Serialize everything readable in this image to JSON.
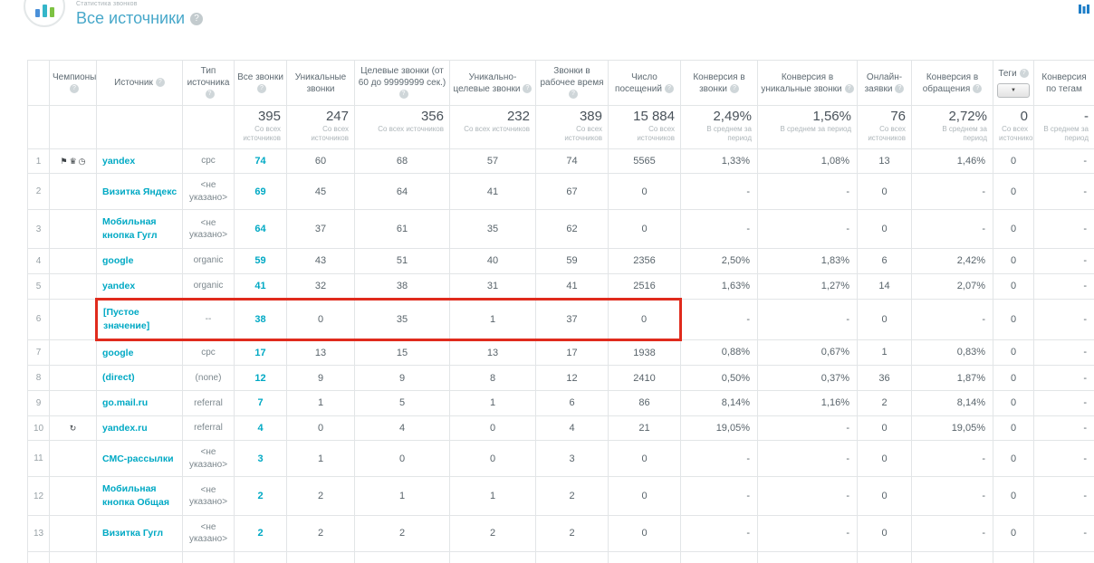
{
  "page": {
    "breadcrumb": "Статистика звонков",
    "title": "Все источники"
  },
  "table": {
    "help_glyph": "?",
    "dropdown_glyph": "▼",
    "columns": [
      {
        "id": "num",
        "label": ""
      },
      {
        "id": "champions",
        "label": "Чемпионы",
        "help": true
      },
      {
        "id": "source",
        "label": "Источник",
        "help": true
      },
      {
        "id": "type",
        "label": "Тип источника",
        "help": true
      },
      {
        "id": "calls",
        "label": "Все звонки",
        "help": true
      },
      {
        "id": "unique",
        "label": "Уникальные звонки"
      },
      {
        "id": "target",
        "label": "Целевые звонки (от 60 до 99999999 сек.)",
        "help": true
      },
      {
        "id": "unique_target",
        "label": "Уникально-целевые звонки",
        "help": true
      },
      {
        "id": "work_time",
        "label": "Звонки в рабочее время",
        "help": true
      },
      {
        "id": "visits",
        "label": "Число посещений",
        "help": true
      },
      {
        "id": "conv_calls",
        "label": "Конверсия в звонки",
        "help": true,
        "align": "right"
      },
      {
        "id": "conv_unique",
        "label": "Конверсия в уникальные звонки",
        "help": true,
        "align": "right"
      },
      {
        "id": "online",
        "label": "Онлайн-заявки",
        "help": true
      },
      {
        "id": "conv_appeals",
        "label": "Конверсия в обращения",
        "help": true,
        "align": "right"
      },
      {
        "id": "tags",
        "label": "Теги",
        "help": true,
        "dropdown": true
      },
      {
        "id": "conv_tags",
        "label": "Конверсия по тегам",
        "align": "right"
      }
    ],
    "totals": {
      "calls": {
        "value": "395",
        "caption": "Со всех источников"
      },
      "unique": {
        "value": "247",
        "caption": "Со всех источников"
      },
      "target": {
        "value": "356",
        "caption": "Со всех источников"
      },
      "unique_target": {
        "value": "232",
        "caption": "Со всех источников"
      },
      "work_time": {
        "value": "389",
        "caption": "Со всех источников"
      },
      "visits": {
        "value": "15 884",
        "caption": "Со всех источников"
      },
      "conv_calls": {
        "value": "2,49%",
        "caption": "В среднем за период"
      },
      "conv_unique": {
        "value": "1,56%",
        "caption": "В среднем за период"
      },
      "online": {
        "value": "76",
        "caption": "Со всех источников"
      },
      "conv_appeals": {
        "value": "2,72%",
        "caption": "В среднем за период"
      },
      "tags": {
        "value": "0",
        "caption": "Со всех источников"
      },
      "conv_tags": {
        "value": "-",
        "caption": "В среднем за период"
      }
    },
    "rows": [
      {
        "num": "1",
        "champions": [
          {
            "glyph": "⚑",
            "name": "flag-icon"
          },
          {
            "glyph": "♛",
            "name": "crown-icon"
          },
          {
            "glyph": "◷",
            "name": "clock-icon"
          }
        ],
        "source": "yandex",
        "type": "cpc",
        "calls": "74",
        "unique": "60",
        "target": "68",
        "unique_target": "57",
        "work_time": "74",
        "visits": "5565",
        "conv_calls": "1,33%",
        "conv_unique": "1,08%",
        "online": "13",
        "conv_appeals": "1,46%",
        "tags": "0",
        "conv_tags": "-",
        "highlight": false
      },
      {
        "num": "2",
        "champions": [],
        "source": "Визитка Яндекс",
        "type": "<не указано>",
        "calls": "69",
        "unique": "45",
        "target": "64",
        "unique_target": "41",
        "work_time": "67",
        "visits": "0",
        "conv_calls": "-",
        "conv_unique": "-",
        "online": "0",
        "conv_appeals": "-",
        "tags": "0",
        "conv_tags": "-",
        "highlight": false
      },
      {
        "num": "3",
        "champions": [],
        "source": "Мобильная кнопка Гугл",
        "type": "<не указано>",
        "calls": "64",
        "unique": "37",
        "target": "61",
        "unique_target": "35",
        "work_time": "62",
        "visits": "0",
        "conv_calls": "-",
        "conv_unique": "-",
        "online": "0",
        "conv_appeals": "-",
        "tags": "0",
        "conv_tags": "-",
        "highlight": false
      },
      {
        "num": "4",
        "champions": [],
        "source": "google",
        "type": "organic",
        "calls": "59",
        "unique": "43",
        "target": "51",
        "unique_target": "40",
        "work_time": "59",
        "visits": "2356",
        "conv_calls": "2,50%",
        "conv_unique": "1,83%",
        "online": "6",
        "conv_appeals": "2,42%",
        "tags": "0",
        "conv_tags": "-",
        "highlight": false
      },
      {
        "num": "5",
        "champions": [],
        "source": "yandex",
        "type": "organic",
        "calls": "41",
        "unique": "32",
        "target": "38",
        "unique_target": "31",
        "work_time": "41",
        "visits": "2516",
        "conv_calls": "1,63%",
        "conv_unique": "1,27%",
        "online": "14",
        "conv_appeals": "2,07%",
        "tags": "0",
        "conv_tags": "-",
        "highlight": false
      },
      {
        "num": "6",
        "champions": [],
        "source": "[Пустое значение]",
        "type": "--",
        "calls": "38",
        "unique": "0",
        "target": "35",
        "unique_target": "1",
        "work_time": "37",
        "visits": "0",
        "conv_calls": "-",
        "conv_unique": "-",
        "online": "0",
        "conv_appeals": "-",
        "tags": "0",
        "conv_tags": "-",
        "highlight": true
      },
      {
        "num": "7",
        "champions": [],
        "source": "google",
        "type": "cpc",
        "calls": "17",
        "unique": "13",
        "target": "15",
        "unique_target": "13",
        "work_time": "17",
        "visits": "1938",
        "conv_calls": "0,88%",
        "conv_unique": "0,67%",
        "online": "1",
        "conv_appeals": "0,83%",
        "tags": "0",
        "conv_tags": "-",
        "highlight": false
      },
      {
        "num": "8",
        "champions": [],
        "source": "(direct)",
        "type": "(none)",
        "calls": "12",
        "unique": "9",
        "target": "9",
        "unique_target": "8",
        "work_time": "12",
        "visits": "2410",
        "conv_calls": "0,50%",
        "conv_unique": "0,37%",
        "online": "36",
        "conv_appeals": "1,87%",
        "tags": "0",
        "conv_tags": "-",
        "highlight": false
      },
      {
        "num": "9",
        "champions": [],
        "source": "go.mail.ru",
        "type": "referral",
        "calls": "7",
        "unique": "1",
        "target": "5",
        "unique_target": "1",
        "work_time": "6",
        "visits": "86",
        "conv_calls": "8,14%",
        "conv_unique": "1,16%",
        "online": "2",
        "conv_appeals": "8,14%",
        "tags": "0",
        "conv_tags": "-",
        "highlight": false
      },
      {
        "num": "10",
        "champions": [
          {
            "glyph": "↻",
            "name": "refresh-icon"
          }
        ],
        "source": "yandex.ru",
        "type": "referral",
        "calls": "4",
        "unique": "0",
        "target": "4",
        "unique_target": "0",
        "work_time": "4",
        "visits": "21",
        "conv_calls": "19,05%",
        "conv_unique": "-",
        "online": "0",
        "conv_appeals": "19,05%",
        "tags": "0",
        "conv_tags": "-",
        "highlight": false
      },
      {
        "num": "11",
        "champions": [],
        "source": "СМС-рассылки",
        "type": "<не указано>",
        "calls": "3",
        "unique": "1",
        "target": "0",
        "unique_target": "0",
        "work_time": "3",
        "visits": "0",
        "conv_calls": "-",
        "conv_unique": "-",
        "online": "0",
        "conv_appeals": "-",
        "tags": "0",
        "conv_tags": "-",
        "highlight": false
      },
      {
        "num": "12",
        "champions": [],
        "source": "Мобильная кнопка Общая",
        "type": "<не указано>",
        "calls": "2",
        "unique": "2",
        "target": "1",
        "unique_target": "1",
        "work_time": "2",
        "visits": "0",
        "conv_calls": "-",
        "conv_unique": "-",
        "online": "0",
        "conv_appeals": "-",
        "tags": "0",
        "conv_tags": "-",
        "highlight": false
      },
      {
        "num": "13",
        "champions": [],
        "source": "Визитка Гугл",
        "type": "<не указано>",
        "calls": "2",
        "unique": "2",
        "target": "2",
        "unique_target": "2",
        "work_time": "2",
        "visits": "0",
        "conv_calls": "-",
        "conv_unique": "-",
        "online": "0",
        "conv_appeals": "-",
        "tags": "0",
        "conv_tags": "-",
        "highlight": false
      }
    ]
  }
}
